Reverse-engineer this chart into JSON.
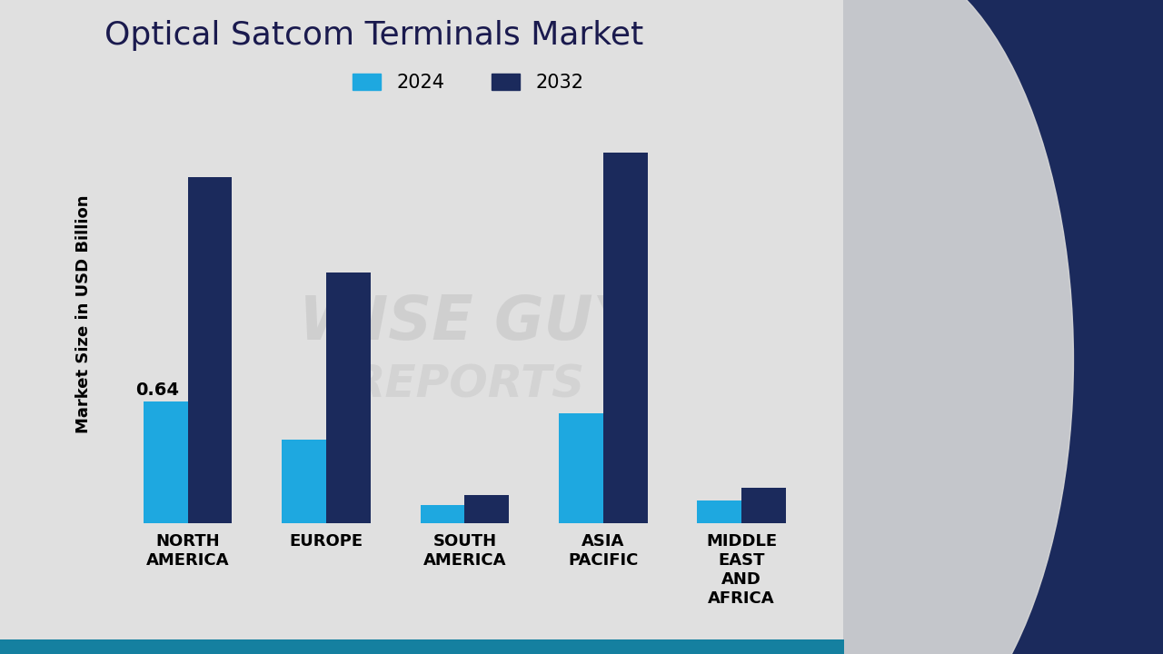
{
  "title": "Optical Satcom Terminals Market",
  "ylabel": "Market Size in USD Billion",
  "background_color": "#e0e0e0",
  "plot_bg_color": "#e0e0e0",
  "bar_color_2024": "#1ea8e0",
  "bar_color_2032": "#1b2a5c",
  "categories": [
    "NORTH\nAMERICA",
    "EUROPE",
    "SOUTH\nAMERICA",
    "ASIA\nPACIFIC",
    "MIDDLE\nEAST\nAND\nAFRICA"
  ],
  "values_2024": [
    0.64,
    0.44,
    0.095,
    0.58,
    0.12
  ],
  "values_2032": [
    1.82,
    1.32,
    0.148,
    1.95,
    0.185
  ],
  "annotation_label": "0.64",
  "annotation_index": 0,
  "legend_labels": [
    "2024",
    "2032"
  ],
  "title_fontsize": 26,
  "label_fontsize": 13,
  "tick_fontsize": 13,
  "legend_fontsize": 15,
  "annotation_fontsize": 14,
  "bar_width": 0.32,
  "ylim": [
    0,
    2.2
  ],
  "right_panel_color": "#1b2a5c",
  "bottom_bar_color": "#1580a0"
}
